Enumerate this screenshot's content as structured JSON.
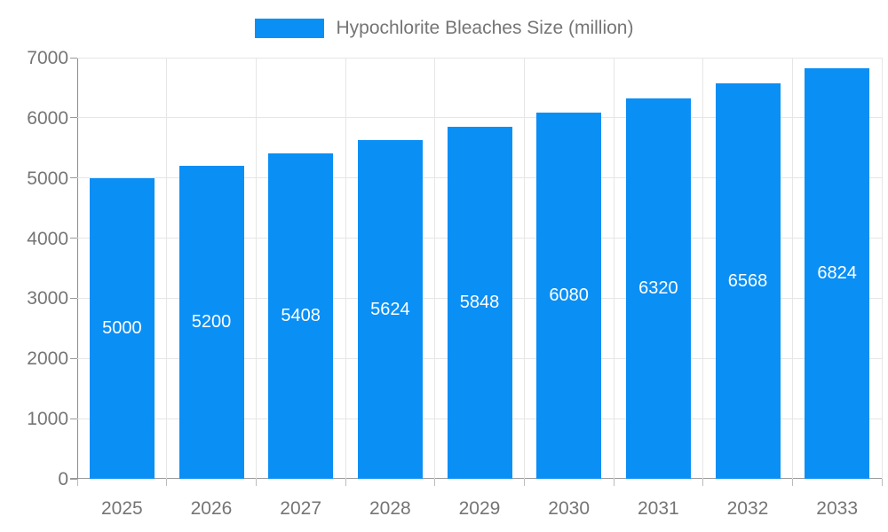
{
  "chart_data": {
    "type": "bar",
    "title": "Hypochlorite Bleaches Size (million)",
    "categories": [
      "2025",
      "2026",
      "2027",
      "2028",
      "2029",
      "2030",
      "2031",
      "2032",
      "2033"
    ],
    "values": [
      5000,
      5200,
      5408,
      5624,
      5848,
      6080,
      6320,
      6568,
      6824
    ],
    "xlabel": "",
    "ylabel": "",
    "ylim": [
      0,
      7000
    ],
    "ytick_interval": 1000,
    "yticks": [
      0,
      1000,
      2000,
      3000,
      4000,
      5000,
      6000,
      7000
    ],
    "legend_position": "top-center",
    "grid": true,
    "data_labels": "inside-middle",
    "colors": {
      "bar": "#0a8ff5",
      "bar_label_text": "#ffffff",
      "axis_text": "#757575",
      "gridline": "#e6e6e6",
      "axis_line": "#999999",
      "legend_text": "#757575"
    }
  }
}
